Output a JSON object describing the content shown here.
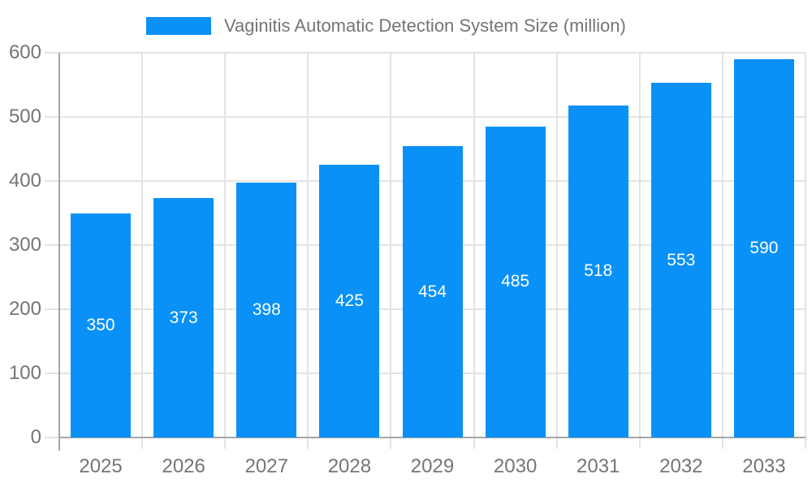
{
  "chart_data": {
    "type": "bar",
    "title": "Vaginitis Automatic Detection System Size (million)",
    "categories": [
      "2025",
      "2026",
      "2027",
      "2028",
      "2029",
      "2030",
      "2031",
      "2032",
      "2033"
    ],
    "values": [
      350,
      373,
      398,
      425,
      454,
      485,
      518,
      553,
      590
    ],
    "xlabel": "",
    "ylabel": "",
    "ylim": [
      0,
      600
    ],
    "yticks": [
      0,
      100,
      200,
      300,
      400,
      500,
      600
    ],
    "grid": true,
    "legend_position": "top",
    "value_labels": "centered-inside-bars",
    "colors": {
      "bar": "#0991f7",
      "grid": "#e3e3e3",
      "axis": "#a6a6a6",
      "axis_text": "#757575",
      "value_label": "#ffffff"
    }
  }
}
